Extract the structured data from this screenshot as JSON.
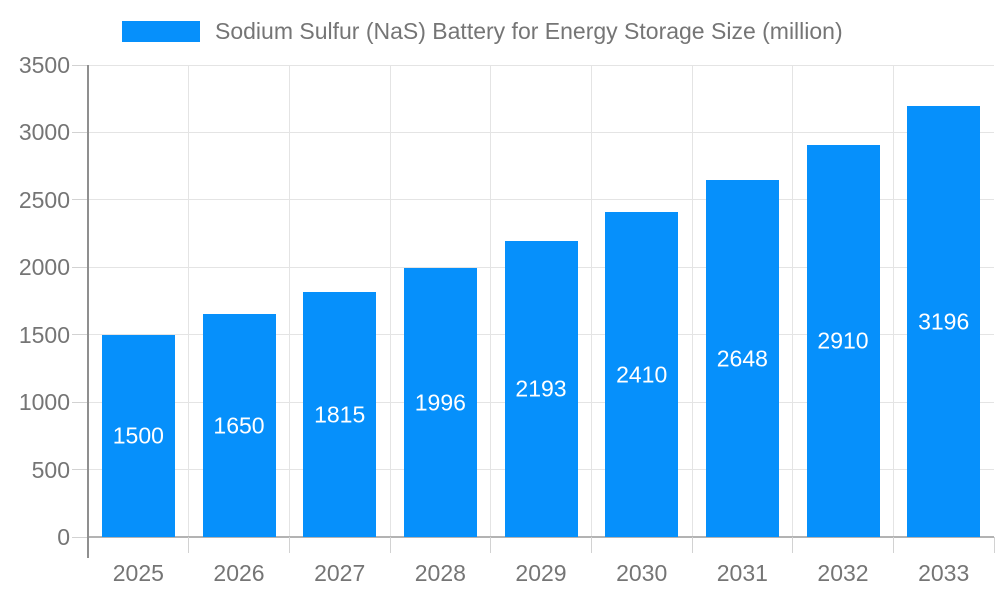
{
  "legend": {
    "label": "Sodium Sulfur (NaS) Battery for Energy Storage Size (million)"
  },
  "chart_data": {
    "type": "bar",
    "title": "Sodium Sulfur (NaS) Battery for Energy Storage Size (million)",
    "categories": [
      "2025",
      "2026",
      "2027",
      "2028",
      "2029",
      "2030",
      "2031",
      "2032",
      "2033"
    ],
    "values": [
      1500,
      1650,
      1815,
      1996,
      2193,
      2410,
      2648,
      2910,
      3196
    ],
    "xlabel": "",
    "ylabel": "",
    "ylim": [
      0,
      3500
    ],
    "yticks": [
      0,
      500,
      1000,
      1500,
      2000,
      2500,
      3000,
      3500
    ],
    "grid": true,
    "legend_position": "top",
    "value_label_position": "inside-center",
    "colors": {
      "bar": "#0690fb",
      "grid": "#e4e4e4",
      "axis_line": "#8f8f8f",
      "baseline": "#b3b3b3",
      "tick": "#d2d2d2",
      "text": "#757575",
      "value_label": "#ffffff",
      "background": "#ffffff"
    }
  }
}
